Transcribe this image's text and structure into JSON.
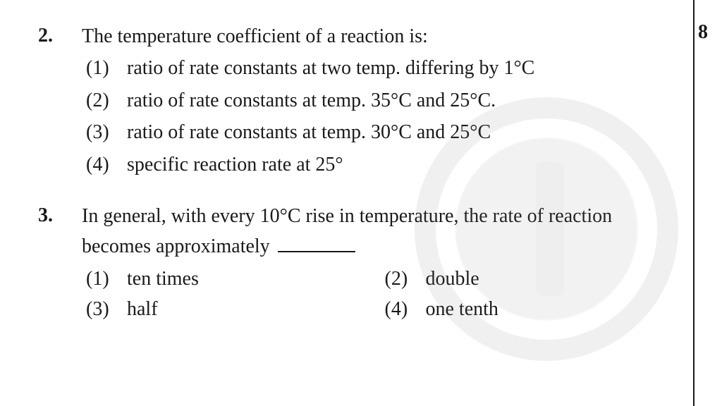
{
  "margin_number": "8",
  "questions": [
    {
      "number": "2.",
      "stem": "The temperature coefficient of a reaction is:",
      "options": [
        {
          "n": "(1)",
          "text": "ratio of rate constants at two temp. differing by 1°C"
        },
        {
          "n": "(2)",
          "text": "ratio of rate constants at temp. 35°C and 25°C."
        },
        {
          "n": "(3)",
          "text": "ratio of rate constants at temp. 30°C and 25°C"
        },
        {
          "n": "(4)",
          "text": "specific reaction rate at 25°"
        }
      ]
    },
    {
      "number": "3.",
      "stem": "In general, with every 10°C rise in temperature, the rate of reaction becomes approximately ",
      "options": [
        {
          "n": "(1)",
          "text": "ten times"
        },
        {
          "n": "(2)",
          "text": "double"
        },
        {
          "n": "(3)",
          "text": "half"
        },
        {
          "n": "(4)",
          "text": "one tenth"
        }
      ]
    }
  ]
}
